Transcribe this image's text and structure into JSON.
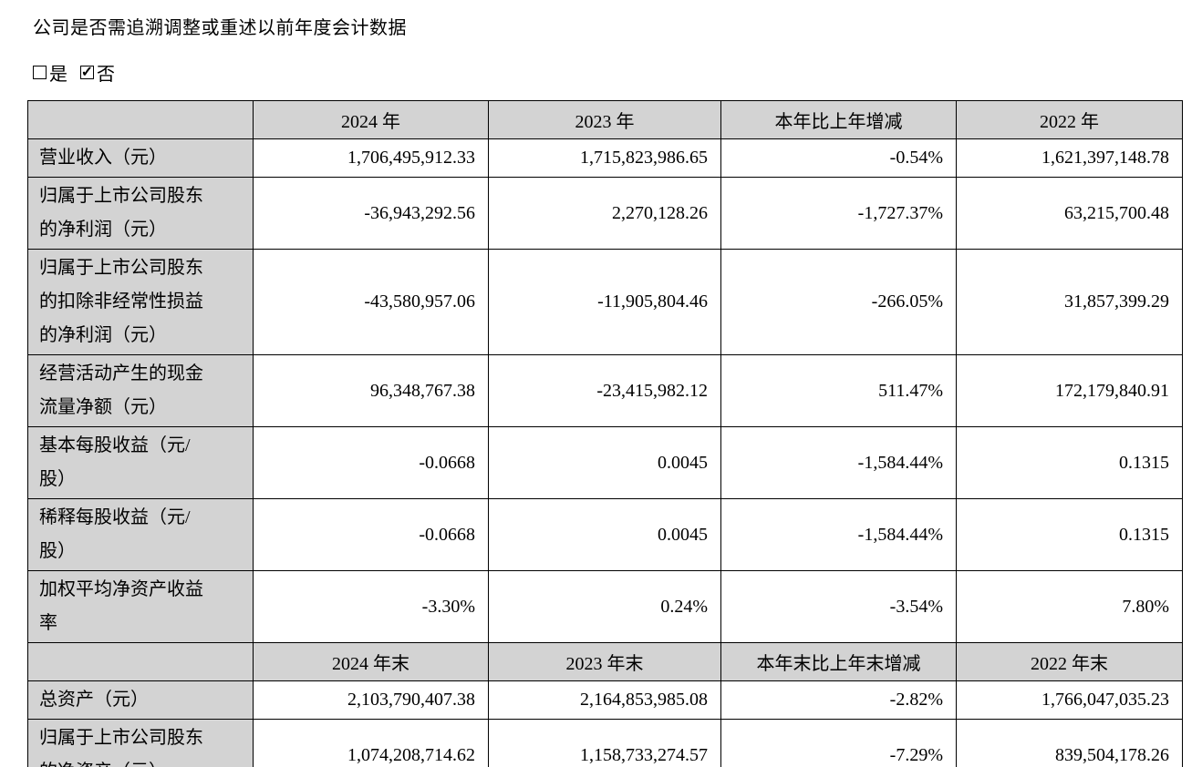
{
  "page": {
    "title": "公司是否需追溯调整或重述以前年度会计数据",
    "check_glyph": "✓",
    "options": [
      {
        "label": "是",
        "checked": false
      },
      {
        "label": "否",
        "checked": true
      }
    ]
  },
  "table": {
    "header1": [
      "",
      "2024 年",
      "2023 年",
      "本年比上年增减",
      "2022 年"
    ],
    "rows1": [
      {
        "label": "营业收入（元）",
        "values": [
          "1,706,495,912.33",
          "1,715,823,986.65",
          "-0.54%",
          "1,621,397,148.78"
        ]
      },
      {
        "label": "归属于上市公司股东\n的净利润（元）",
        "values": [
          "-36,943,292.56",
          "2,270,128.26",
          "-1,727.37%",
          "63,215,700.48"
        ]
      },
      {
        "label": "归属于上市公司股东\n的扣除非经常性损益\n的净利润（元）",
        "values": [
          "-43,580,957.06",
          "-11,905,804.46",
          "-266.05%",
          "31,857,399.29"
        ]
      },
      {
        "label": "经营活动产生的现金\n流量净额（元）",
        "values": [
          "96,348,767.38",
          "-23,415,982.12",
          "511.47%",
          "172,179,840.91"
        ]
      },
      {
        "label": "基本每股收益（元/\n股）",
        "values": [
          "-0.0668",
          "0.0045",
          "-1,584.44%",
          "0.1315"
        ]
      },
      {
        "label": "稀释每股收益（元/\n股）",
        "values": [
          "-0.0668",
          "0.0045",
          "-1,584.44%",
          "0.1315"
        ]
      },
      {
        "label": "加权平均净资产收益\n率",
        "values": [
          "-3.30%",
          "0.24%",
          "-3.54%",
          "7.80%"
        ]
      }
    ],
    "header2": [
      "",
      "2024 年末",
      "2023 年末",
      "本年末比上年末增减",
      "2022 年末"
    ],
    "rows2": [
      {
        "label": "总资产（元）",
        "values": [
          "2,103,790,407.38",
          "2,164,853,985.08",
          "-2.82%",
          "1,766,047,035.23"
        ]
      },
      {
        "label": "归属于上市公司股东\n的净资产（元）",
        "values": [
          "1,074,208,714.62",
          "1,158,733,274.57",
          "-7.29%",
          "839,504,178.26"
        ]
      }
    ]
  },
  "colors": {
    "header_bg": "#d3d3d3",
    "border": "#000000",
    "text": "#000000",
    "page_bg": "#ffffff"
  }
}
